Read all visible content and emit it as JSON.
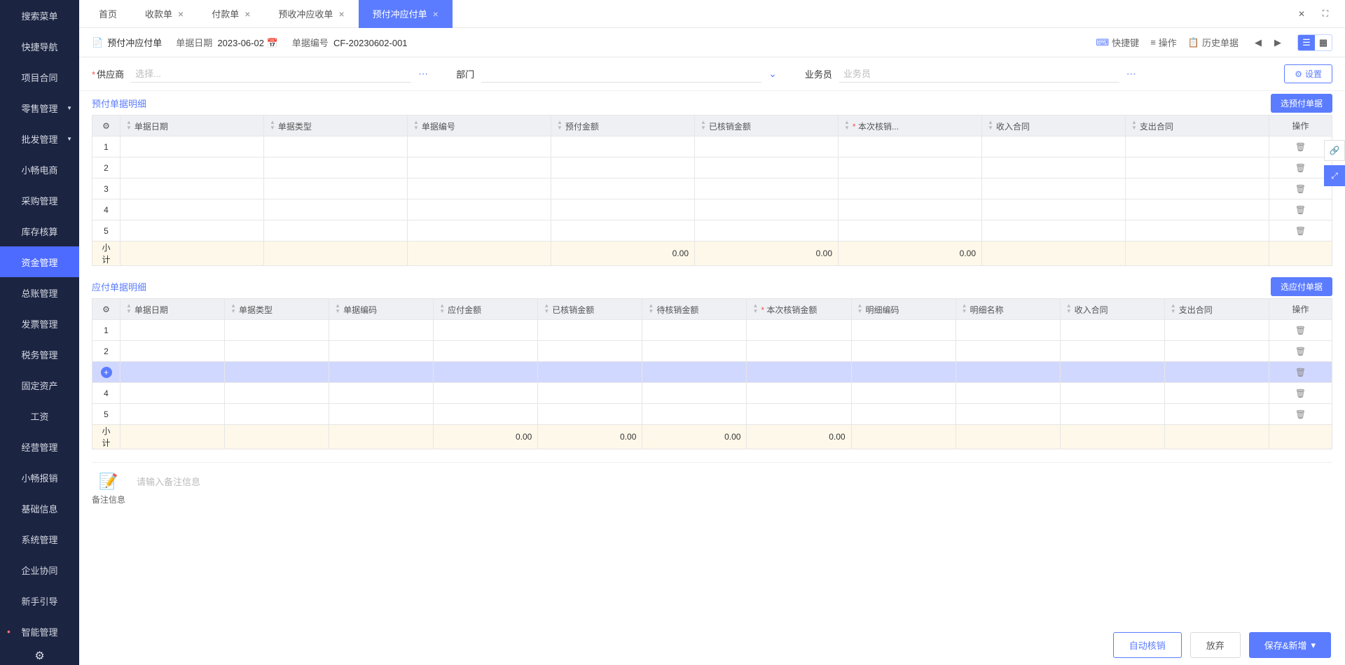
{
  "sidebar": {
    "items": [
      {
        "label": "搜索菜单"
      },
      {
        "label": "快捷导航"
      },
      {
        "label": "项目合同"
      },
      {
        "label": "零售管理",
        "arrow": true
      },
      {
        "label": "批发管理",
        "arrow": true
      },
      {
        "label": "小畅电商"
      },
      {
        "label": "采购管理"
      },
      {
        "label": "库存核算"
      },
      {
        "label": "资金管理",
        "active": true
      },
      {
        "label": "总账管理"
      },
      {
        "label": "发票管理"
      },
      {
        "label": "税务管理"
      },
      {
        "label": "固定资产"
      },
      {
        "label": "工资"
      },
      {
        "label": "经营管理"
      },
      {
        "label": "小畅报销"
      },
      {
        "label": "基础信息"
      },
      {
        "label": "系统管理"
      },
      {
        "label": "企业协同"
      },
      {
        "label": "新手引导"
      },
      {
        "label": "智能管理",
        "dot": true
      }
    ]
  },
  "tabs": [
    {
      "label": "首页",
      "closable": false
    },
    {
      "label": "收款单",
      "closable": true
    },
    {
      "label": "付款单",
      "closable": true
    },
    {
      "label": "预收冲应收单",
      "closable": true
    },
    {
      "label": "预付冲应付单",
      "closable": true,
      "active": true
    }
  ],
  "header": {
    "page_title": "预付冲应付单",
    "date_label": "单据日期",
    "date_value": "2023-06-02",
    "doc_label": "单据编号",
    "doc_value": "CF-20230602-001",
    "shortcut": "快捷键",
    "operate": "操作",
    "history": "历史单据"
  },
  "form": {
    "supplier_label": "供应商",
    "supplier_placeholder": "选择...",
    "dept_label": "部门",
    "salesman_label": "业务员",
    "salesman_placeholder": "业务员",
    "settings_btn": "设置"
  },
  "table1": {
    "title": "预付单据明细",
    "select_btn": "选预付单据",
    "columns": [
      "单据日期",
      "单据类型",
      "单据编号",
      "预付金额",
      "已核销金额",
      "本次核销...",
      "收入合同",
      "支出合同"
    ],
    "op_label": "操作",
    "subtotal_label": "小计",
    "subtotal": [
      "",
      "",
      "",
      "0.00",
      "0.00",
      "0.00",
      "",
      ""
    ]
  },
  "table2": {
    "title": "应付单据明细",
    "select_btn": "选应付单据",
    "columns": [
      "单据日期",
      "单据类型",
      "单据编码",
      "应付金额",
      "已核销金额",
      "待核销金额",
      "本次核销金额",
      "明细编码",
      "明细名称",
      "收入合同",
      "支出合同"
    ],
    "op_label": "操作",
    "subtotal_label": "小计",
    "subtotal": [
      "",
      "",
      "",
      "0.00",
      "0.00",
      "0.00",
      "0.00",
      "",
      "",
      "",
      ""
    ]
  },
  "remark": {
    "label": "备注信息",
    "placeholder": "请输入备注信息"
  },
  "footer": {
    "auto": "自动核销",
    "discard": "放弃",
    "save": "保存&新增"
  }
}
